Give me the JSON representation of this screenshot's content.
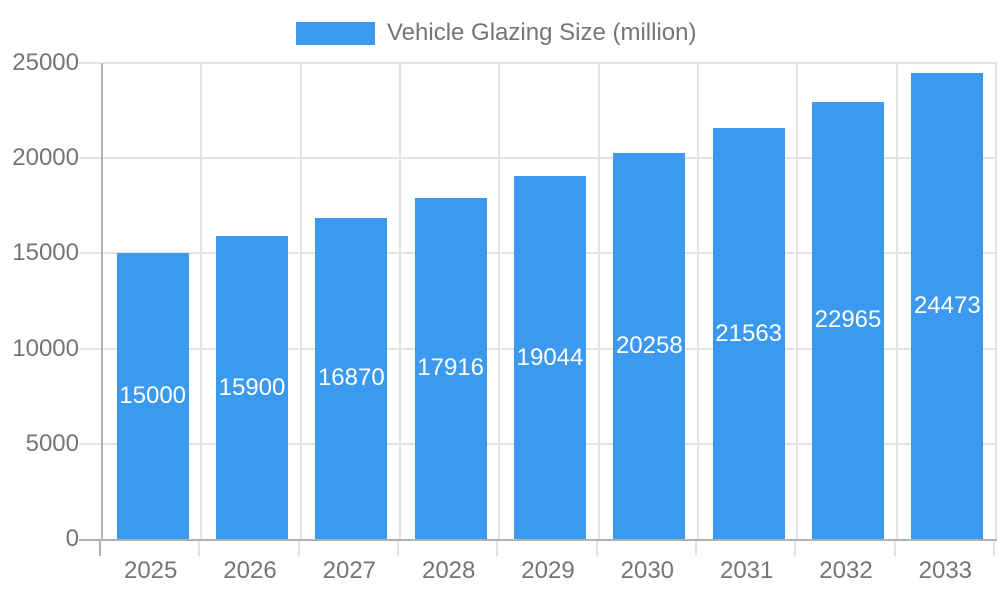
{
  "legend": {
    "label": "Vehicle Glazing Size (million)"
  },
  "chart_data": {
    "type": "bar",
    "title": "Vehicle Glazing Size (million)",
    "categories": [
      "2025",
      "2026",
      "2027",
      "2028",
      "2029",
      "2030",
      "2031",
      "2032",
      "2033"
    ],
    "series": [
      {
        "name": "Vehicle Glazing Size (million)",
        "values": [
          15000,
          15900,
          16870,
          17916,
          19044,
          20258,
          21563,
          22965,
          24473
        ]
      }
    ],
    "value_labels": [
      15000,
      15900,
      16870,
      17916,
      19044,
      20258,
      21563,
      22965,
      24473
    ],
    "value_label_position": "inside-center",
    "xlabel": "",
    "ylabel": "",
    "ylim": [
      0,
      25000
    ],
    "y_ticks": [
      0,
      5000,
      10000,
      15000,
      20000,
      25000
    ],
    "grid": "on",
    "legend_position": "top",
    "colors": {
      "bar": "#3B99EF",
      "axis_line": "#b1b1b1",
      "gridline": "#e3e3e3",
      "axis_text": "#757575",
      "bar_label_text": "#ffffff",
      "background": "#ffffff"
    }
  }
}
